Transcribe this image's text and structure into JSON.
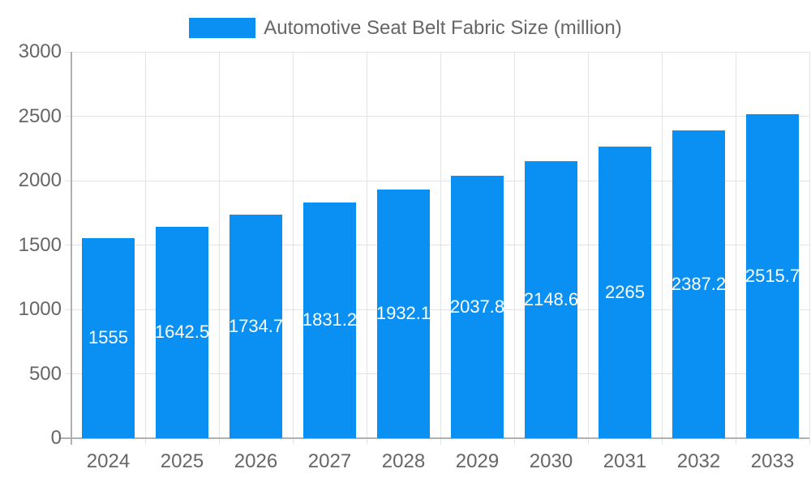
{
  "chart_data": {
    "type": "bar",
    "title": "Automotive Seat Belt Fabric Size (million)",
    "series_name": "Automotive Seat Belt Fabric Size (million)",
    "categories": [
      "2024",
      "2025",
      "2026",
      "2027",
      "2028",
      "2029",
      "2030",
      "2031",
      "2032",
      "2033"
    ],
    "values": [
      1555,
      1642.5,
      1734.7,
      1831.2,
      1932.1,
      2037.8,
      2148.6,
      2265,
      2387.2,
      2515.7
    ],
    "xlabel": "",
    "ylabel": "",
    "ylim": [
      0,
      3000
    ],
    "yticks": [
      0,
      500,
      1000,
      1500,
      2000,
      2500,
      3000
    ],
    "legend_position": "top-center",
    "grid": true,
    "value_labels": "inside-middle-white",
    "colors": {
      "bar": "#0a90f2",
      "value_label_text": "#ffffff",
      "axis_text": "#666666",
      "gridline": "#e3e3e3",
      "axis_line": "#b0b0b0",
      "background": "#ffffff"
    }
  }
}
